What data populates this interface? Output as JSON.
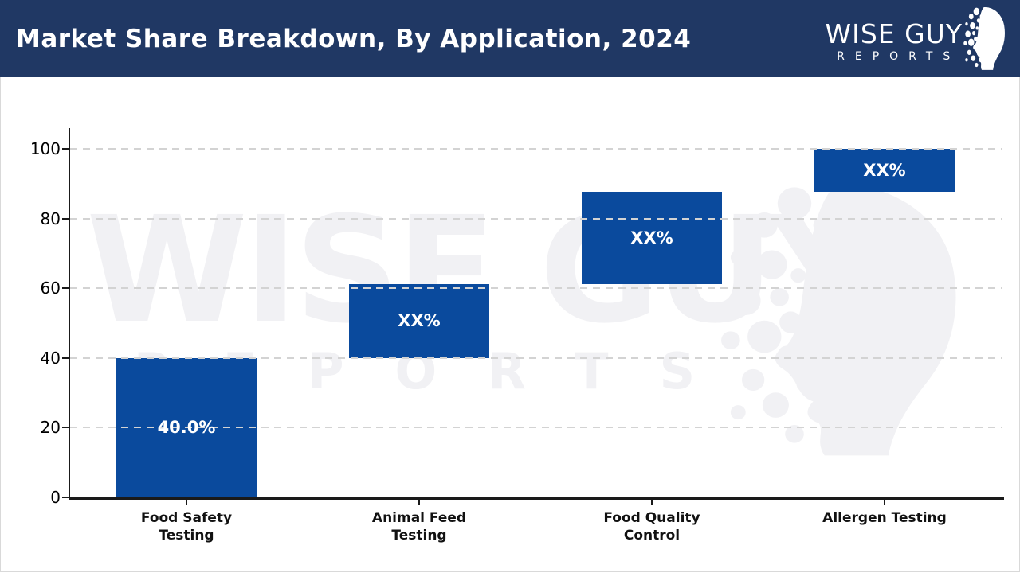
{
  "header": {
    "title": "Market Share Breakdown, By Application, 2024",
    "logo": {
      "name": "WISE GUY",
      "sub": "REPORTS",
      "icon": "face-profile-dots"
    }
  },
  "watermark": {
    "big": "WISE GUY",
    "sub": "REPORTS"
  },
  "chart_data": {
    "type": "bar",
    "subtype": "floating-waterfall",
    "title": "Market Share Breakdown, By Application, 2024",
    "xlabel": "",
    "ylabel": "",
    "categories": [
      "Food Safety Testing",
      "Animal Feed Testing",
      "Food Quality Control",
      "Allergen Testing"
    ],
    "bars": [
      {
        "category_lines": [
          "Food Safety",
          "Testing"
        ],
        "start": 0,
        "end": 40,
        "label": "40.0%"
      },
      {
        "category_lines": [
          "Animal Feed",
          "Testing"
        ],
        "start": 40,
        "end": 61.2,
        "label": "XX%"
      },
      {
        "category_lines": [
          "Food Quality",
          "Control"
        ],
        "start": 61.2,
        "end": 87.7,
        "label": "XX%"
      },
      {
        "category_lines": [
          "Allergen Testing"
        ],
        "start": 87.7,
        "end": 100,
        "label": "XX%"
      }
    ],
    "segment_values": [
      40.0,
      21.2,
      26.5,
      12.3
    ],
    "yticks": [
      0,
      20,
      40,
      60,
      80,
      100
    ],
    "ylim": [
      0,
      105
    ],
    "grid": "horizontal-dashed",
    "legend": "none"
  },
  "colors": {
    "header_bg": "#203864",
    "bar": "#0a4a9d",
    "grid": "#d3d3d3",
    "axis": "#1a1a1a",
    "watermark": "#f1f1f4",
    "label_on_bar": "#ffffff"
  }
}
